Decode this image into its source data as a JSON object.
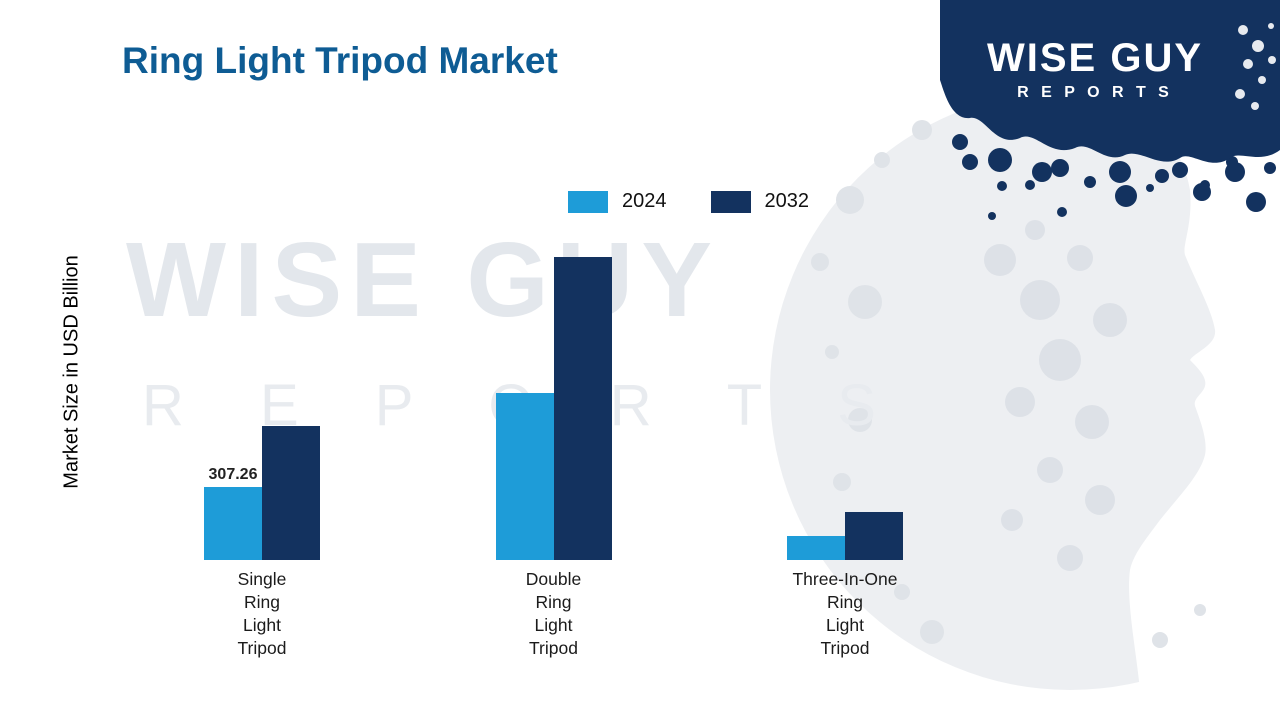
{
  "header": {
    "title": "Ring Light Tripod Market"
  },
  "logo": {
    "line1": "WISE GUY",
    "line2": "R E P O R T S"
  },
  "watermark": {
    "line1": "WISE GUY",
    "line2": "R E P O R T S"
  },
  "colors": {
    "title": "#0e5c94",
    "series_2024": "#1e9cd8",
    "series_2032": "#13325f",
    "logo_background": "#13325f",
    "watermark_gray": "#e3e7ec"
  },
  "chart_data": {
    "type": "bar",
    "title": "Ring Light Tripod Market",
    "xlabel": "",
    "ylabel": "Market Size in USD Billion",
    "categories": [
      "Single Ring Light Tripod",
      "Double Ring Light Tripod",
      "Three-In-One Ring Light Tripod"
    ],
    "categories_lines": [
      [
        "Single",
        "Ring",
        "Light",
        "Tripod"
      ],
      [
        "Double",
        "Ring",
        "Light",
        "Tripod"
      ],
      [
        "Three-In-One",
        "Ring",
        "Light",
        "Tripod"
      ]
    ],
    "series": [
      {
        "name": "2024",
        "color": "#1e9cd8",
        "values": [
          307.26,
          700,
          100
        ]
      },
      {
        "name": "2032",
        "color": "#13325f",
        "values": [
          560,
          1270,
          200
        ]
      }
    ],
    "annotations": [
      {
        "series_index": 0,
        "category_index": 0,
        "text": "307.26"
      }
    ],
    "ylim": [
      0,
      1300
    ],
    "grid": false,
    "legend_position": "top-center"
  }
}
